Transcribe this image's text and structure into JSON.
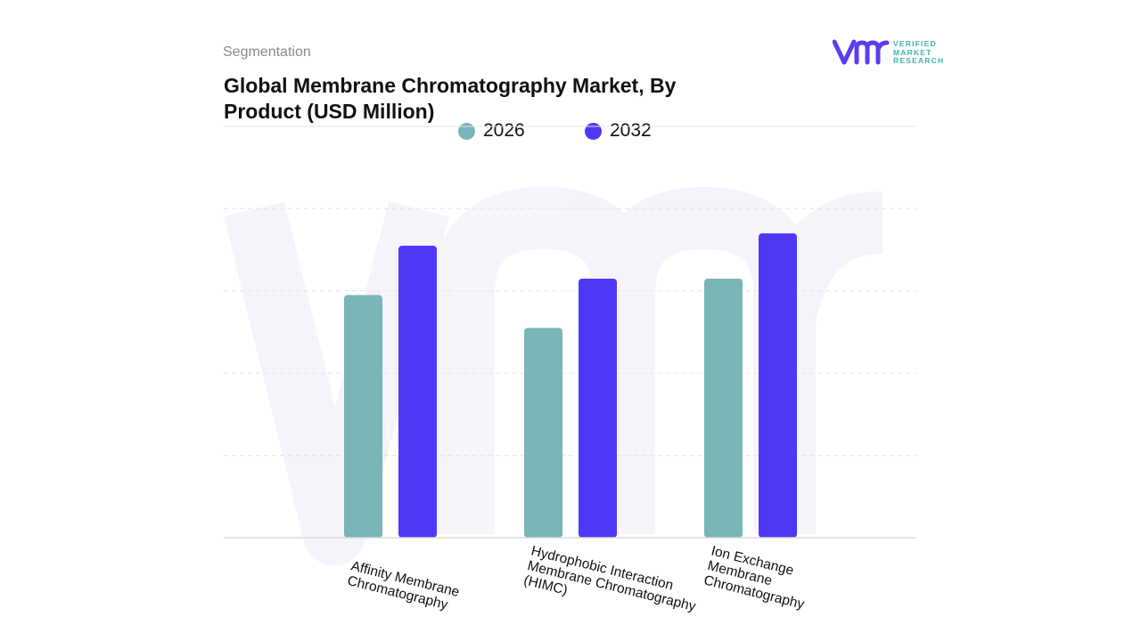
{
  "header": {
    "kicker": "Segmentation",
    "title_line1": "Global Membrane Chromatography Market, By",
    "title_line2": "Product (USD Million)"
  },
  "logo": {
    "line1": "VERIFIED",
    "line2": "MARKET",
    "line3": "RESEARCH",
    "colors": {
      "mark": "#5a3df0",
      "text": "#3fb5a9"
    }
  },
  "chart_data": {
    "type": "bar",
    "title": "Global Membrane Chromatography Market, By Product (USD Million)",
    "categories": [
      [
        "Affinity Membrane",
        "Chromatography"
      ],
      [
        "Hydrophobic Interaction",
        "Membrane Chromatography",
        "(HIMC)"
      ],
      [
        "Ion Exchange",
        "Membrane",
        "Chromatography"
      ]
    ],
    "series": [
      {
        "name": "2026",
        "color": "#7ab5b8",
        "values": [
          59,
          51,
          63
        ]
      },
      {
        "name": "2032",
        "color": "#4f38f5",
        "values": [
          71,
          63,
          74
        ]
      }
    ],
    "ylim": [
      0,
      100
    ],
    "grid": true,
    "legend_position": "top",
    "xlabel": "",
    "ylabel": ""
  }
}
